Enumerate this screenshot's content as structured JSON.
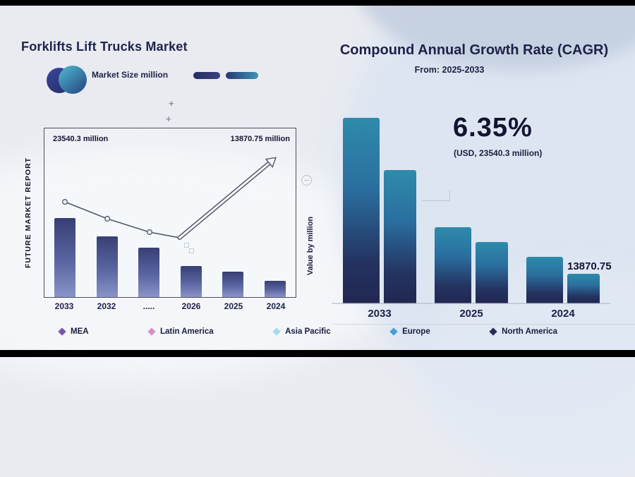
{
  "colors": {
    "background": "#e9ebf1",
    "title_navy": "#20244e",
    "bar_left_top": "#383f74",
    "bar_left_bottom": "#8994c8",
    "bar_right_top": "#2e8bab",
    "bar_right_bottom": "#212752",
    "letterbox": "#000000"
  },
  "left_panel": {
    "title": "Forklifts Lift Trucks Market",
    "logo_label": "Market Size million",
    "ylabel": "FUTURE MARKET REPORT",
    "annotation_left": "23540.3 million",
    "annotation_right": "13870.75 million"
  },
  "right_panel": {
    "title": "Compound Annual Growth Rate (CAGR)",
    "subtitle": "From: 2025-2033",
    "cagr": "6.35%",
    "cagr_detail": "(USD, 23540.3 million)",
    "ylabel": "Value by million",
    "value_label": "13870.75"
  },
  "legend": {
    "items": [
      {
        "label": "MEA",
        "color": "#7a56aa"
      },
      {
        "label": "Latin America",
        "color": "#d78fcb"
      },
      {
        "label": "Asia Pacific",
        "color": "#a6dbee"
      },
      {
        "label": "Europe",
        "color": "#46a0d6"
      },
      {
        "label": "North America",
        "color": "#272c5e"
      }
    ]
  },
  "decorations": {
    "plus_signs": [
      "+",
      "+"
    ]
  },
  "chart_data": [
    {
      "type": "bar",
      "name": "market-size-by-year",
      "title": "Forklifts Lift Trucks Market",
      "ylabel": "FUTURE MARKET REPORT",
      "categories": [
        "2033",
        "2032",
        ".....",
        "2026",
        "2025",
        "2024"
      ],
      "values_pct_of_plot": [
        46.5,
        35.7,
        29,
        18.3,
        14.9,
        9.5
      ],
      "annotations": {
        "top_left": "23540.3 million",
        "top_right": "13870.75 million"
      },
      "line_overlay": {
        "points_pct": [
          [
            8.1,
            43.2
          ],
          [
            24.9,
            53.1
          ],
          [
            41.6,
            61.0
          ],
          [
            53.5,
            64.3
          ]
        ],
        "arrow_end_pct": [
          89.7,
          19.5
        ]
      },
      "note": "Bars descend from 2033 to 2024; a trend line with circle markers dips, then an outlined arrow rises toward the 13870.75 million annotation. No numeric axis shown; values are relative bar heights as % of plot height."
    },
    {
      "type": "bar",
      "name": "cagr-value-by-year",
      "title": "Compound Annual Growth Rate (CAGR)",
      "subtitle": "From: 2025-2033",
      "cagr": "6.35%",
      "cagr_detail": "(USD, 23540.3 million)",
      "ylabel": "Value by million",
      "categories": [
        "2033",
        "2025",
        "2024"
      ],
      "series": [
        {
          "name": "series-a",
          "values_pct_of_plot": [
            100,
            41,
            25
          ]
        },
        {
          "name": "series-b",
          "values_pct_of_plot": [
            72,
            33,
            16
          ]
        }
      ],
      "data_label": {
        "text": "13870.75",
        "category": "2024"
      },
      "note": "Paired gradient bars per year, tallest at 2033, shortest at 2024. No numeric axis shown; values are relative heights as % of plot height."
    }
  ]
}
